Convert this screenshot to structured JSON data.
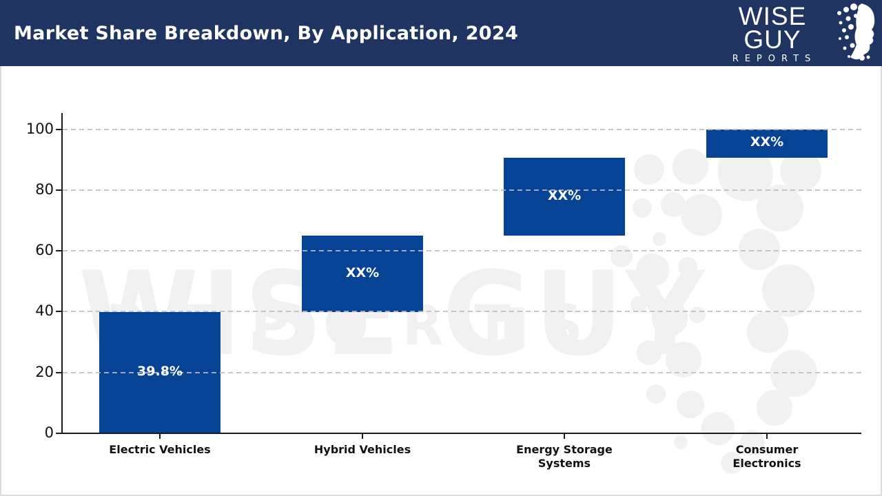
{
  "header": {
    "title": "Market Share Breakdown, By Application, 2024",
    "logo": {
      "line1": "WISE GUY",
      "line2": "REPORTS"
    }
  },
  "watermark": {
    "line1": "WISE GUY",
    "line2": "REPORTS"
  },
  "chart_data": {
    "type": "bar",
    "subtype": "waterfall",
    "title": "Market Share Breakdown, By Application, 2024",
    "categories": [
      "Electric Vehicles",
      "Hybrid Vehicles",
      "Energy Storage\nSystems",
      "Consumer\nElectronics"
    ],
    "series": [
      {
        "name": "Market Share",
        "segments": [
          {
            "category": "Electric Vehicles",
            "start": 0,
            "end": 39.8,
            "label": "39.8%"
          },
          {
            "category": "Hybrid Vehicles",
            "start": 39.8,
            "end": 65,
            "label": "XX%"
          },
          {
            "category": "Energy Storage Systems",
            "start": 65,
            "end": 90.6,
            "label": "XX%"
          },
          {
            "category": "Consumer Electronics",
            "start": 90.6,
            "end": 100,
            "label": "XX%"
          }
        ]
      }
    ],
    "ylim": [
      0,
      100
    ],
    "yticks": [
      0,
      20,
      40,
      60,
      80,
      100
    ],
    "grid": "horizontal dashed",
    "legend": "none",
    "bar_color": "#074394",
    "bar_label_color": "#ffffff"
  }
}
